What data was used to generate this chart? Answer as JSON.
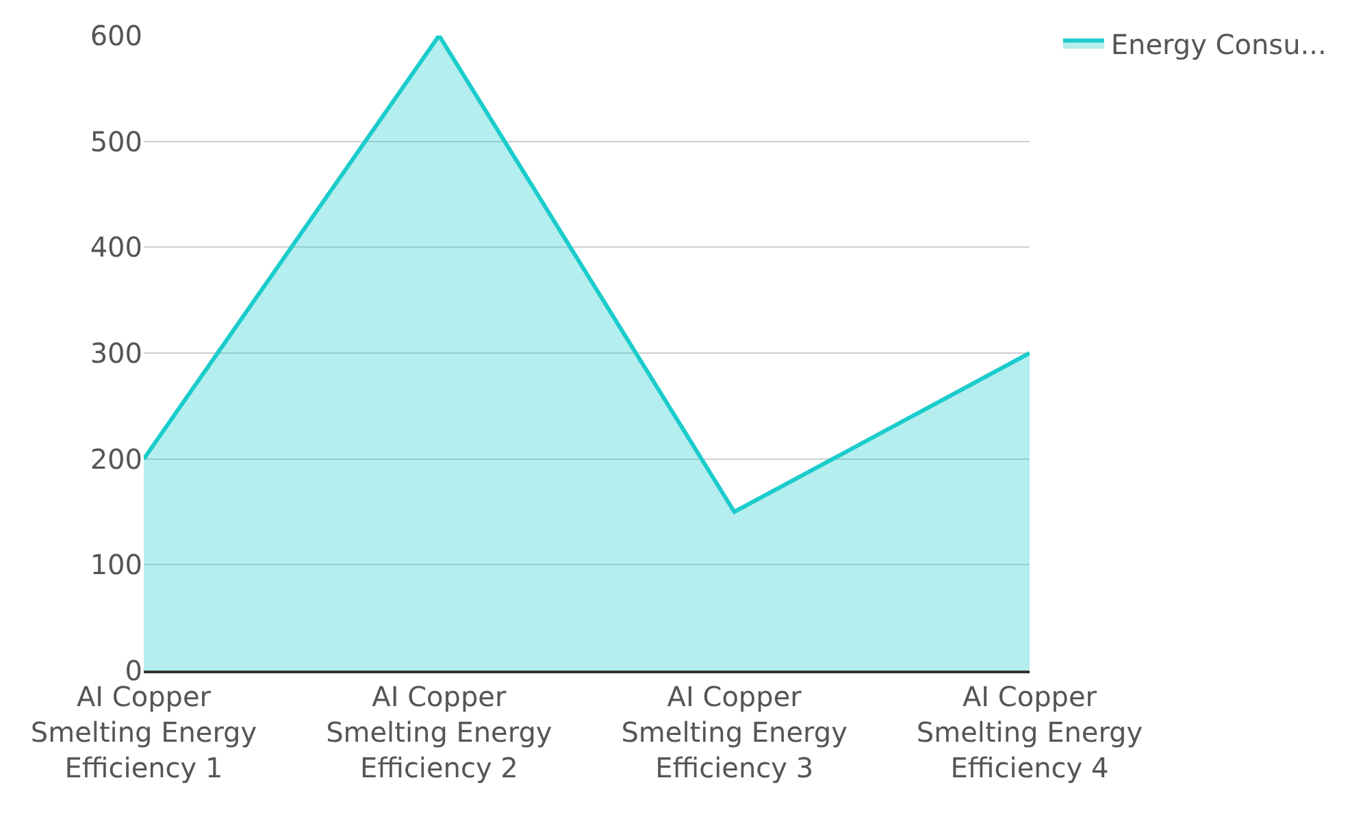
{
  "chart_data": {
    "type": "area",
    "categories": [
      "AI Copper Smelting Energy Efficiency 1",
      "AI Copper Smelting Energy Efficiency 2",
      "AI Copper Smelting Energy Efficiency 3",
      "AI Copper Smelting Energy Efficiency 4"
    ],
    "series": [
      {
        "name": "Energy Consu...",
        "color": "#1ccccc",
        "values": [
          200,
          600,
          150,
          300
        ]
      }
    ],
    "ylim": [
      0,
      600
    ],
    "yticks": [
      0,
      100,
      200,
      300,
      400,
      500,
      600
    ],
    "grid": "y",
    "legend": "top right",
    "marker": "none",
    "line_style": "solid"
  }
}
